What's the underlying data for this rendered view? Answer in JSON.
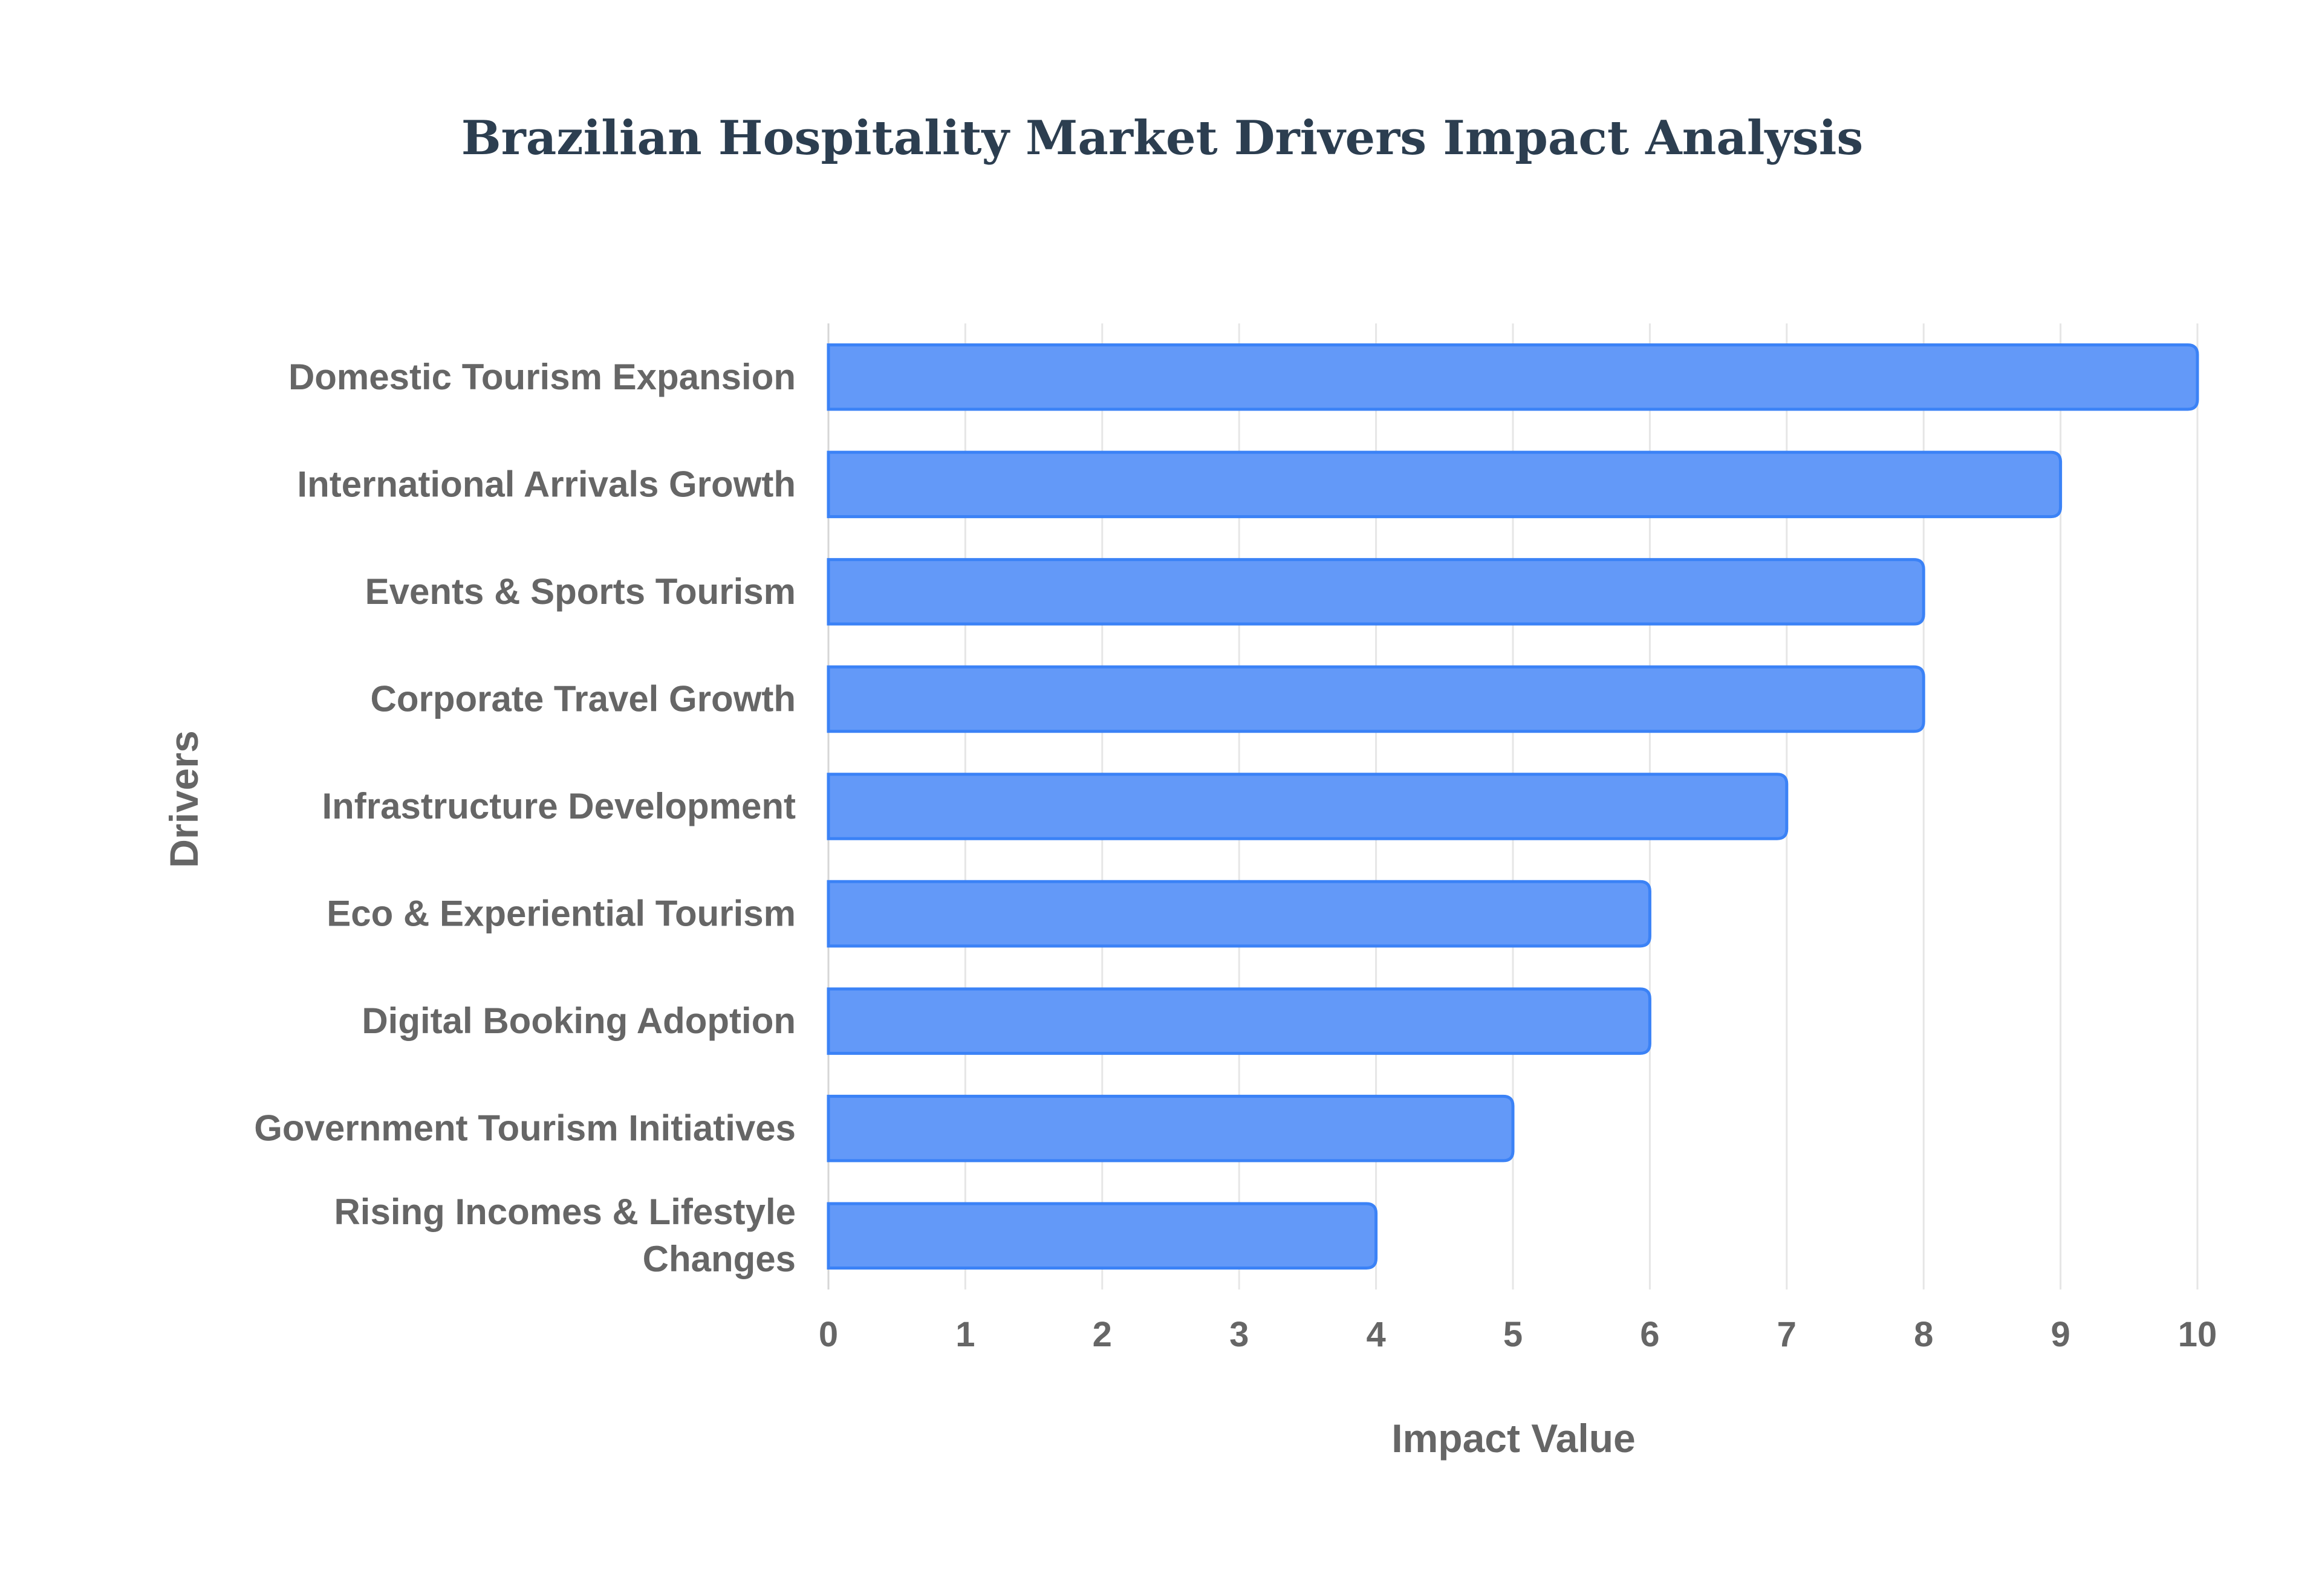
{
  "chart_data": {
    "type": "bar",
    "orientation": "horizontal",
    "title": "Brazilian Hospitality Market Drivers Impact Analysis",
    "xlabel": "Impact Value",
    "ylabel": "Drivers",
    "xlim": [
      0,
      10
    ],
    "xticks": [
      0,
      1,
      2,
      3,
      4,
      5,
      6,
      7,
      8,
      9,
      10
    ],
    "grid": true,
    "bar_color": "#6399f8",
    "bar_edge_color": "#3b82f6",
    "categories": [
      "Domestic Tourism Expansion",
      "International Arrivals Growth",
      "Events & Sports Tourism",
      "Corporate Travel Growth",
      "Infrastructure Development",
      "Eco & Experiential Tourism",
      "Digital Booking Adoption",
      "Government Tourism Initiatives",
      "Rising Incomes & Lifestyle Changes"
    ],
    "category_lines": [
      [
        "Domestic Tourism Expansion"
      ],
      [
        "International Arrivals Growth"
      ],
      [
        "Events & Sports Tourism"
      ],
      [
        "Corporate Travel Growth"
      ],
      [
        "Infrastructure Development"
      ],
      [
        "Eco & Experiential Tourism"
      ],
      [
        "Digital Booking Adoption"
      ],
      [
        "Government Tourism Initiatives"
      ],
      [
        "Rising Incomes & Lifestyle",
        "Changes"
      ]
    ],
    "values": [
      10,
      9,
      8,
      8,
      7,
      6,
      6,
      5,
      4
    ]
  }
}
